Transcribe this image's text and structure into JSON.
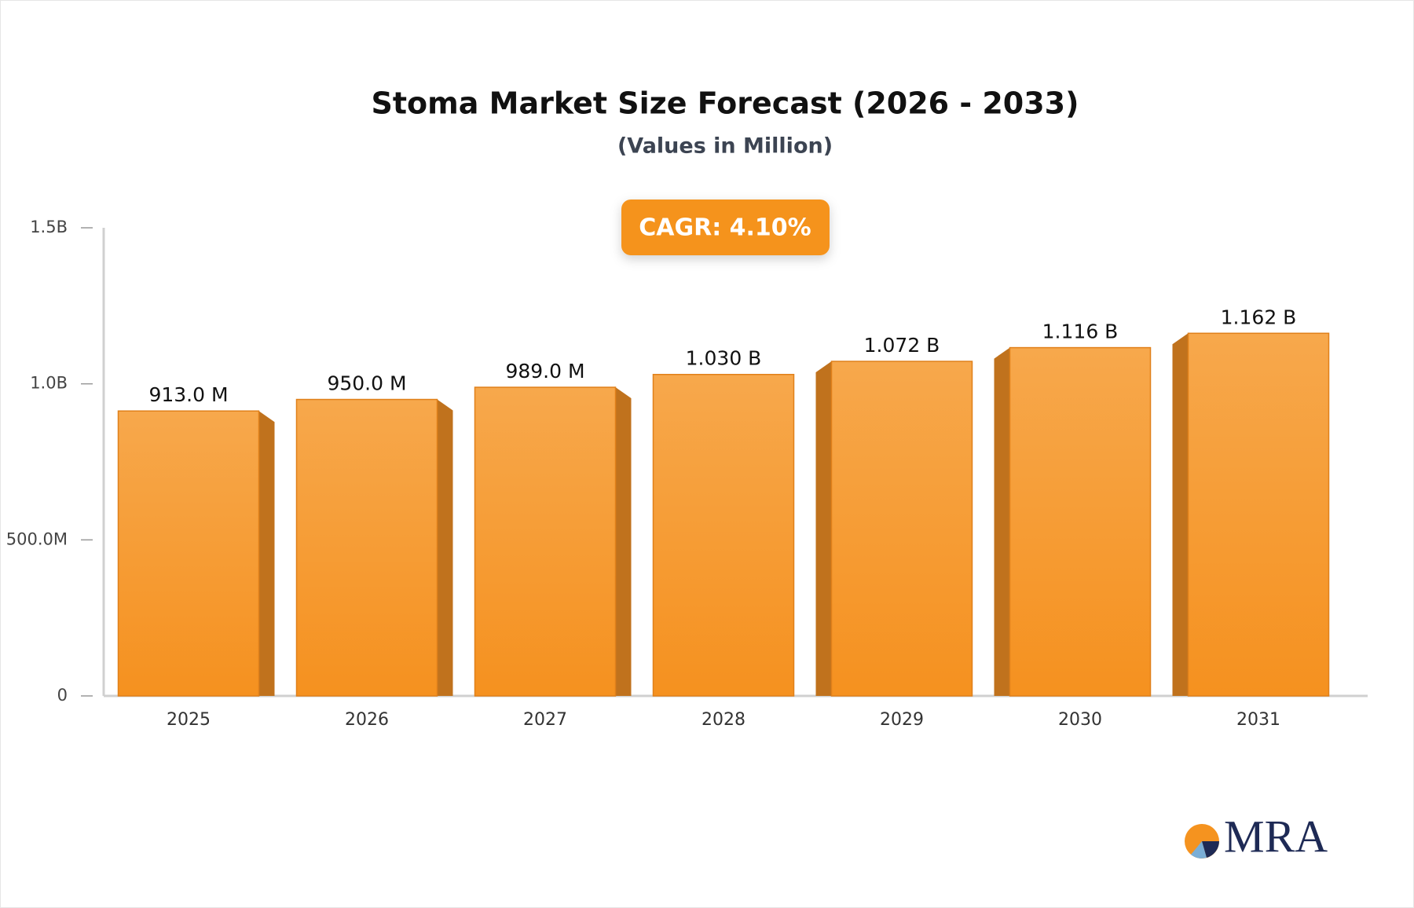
{
  "chart_data": {
    "type": "bar",
    "title": "Stoma Market Size Forecast (2026 - 2033)",
    "subtitle": "(Values in Million)",
    "annotation": "CAGR: 4.10%",
    "categories": [
      "2025",
      "2026",
      "2027",
      "2028",
      "2029",
      "2030",
      "2031"
    ],
    "values": [
      913,
      950,
      989,
      1030,
      1072,
      1116,
      1162
    ],
    "value_labels": [
      "913.0 M",
      "950.0 M",
      "989.0 M",
      "1.030 B",
      "1.072 B",
      "1.116 B",
      "1.162 B"
    ],
    "color": "#f5931f",
    "ylim": [
      0,
      1500
    ],
    "yticks": [
      0,
      {
        "value": 500,
        "label": "500.0M"
      },
      {
        "value": 1000,
        "label": "1.0B"
      },
      {
        "value": 1500,
        "label": "1.5B"
      }
    ],
    "grid": false
  },
  "logo_text": "MRA"
}
